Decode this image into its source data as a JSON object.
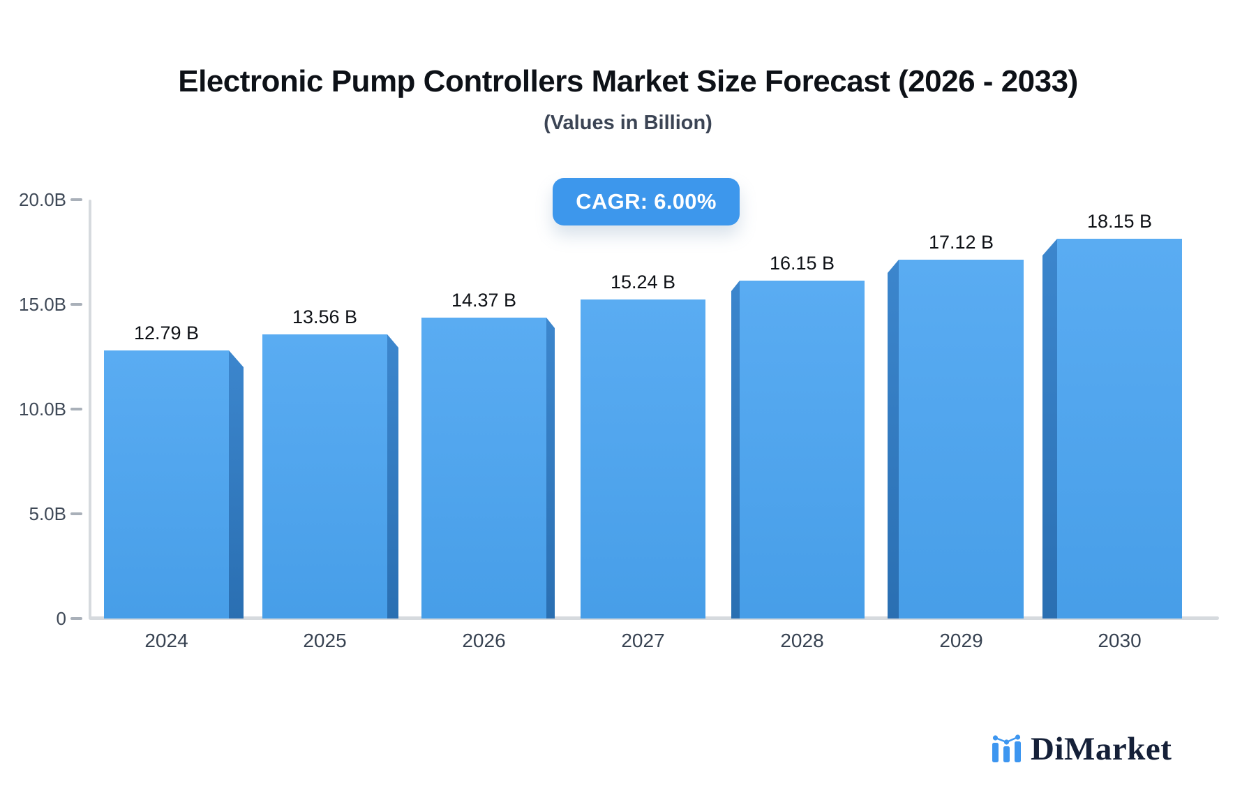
{
  "header": {
    "title": "Electronic Pump Controllers Market Size Forecast (2026 - 2033)",
    "subtitle": "(Values in Billion)"
  },
  "badge": {
    "label": "CAGR: 6.00%",
    "bg_color": "#3d97ec",
    "text_color": "#ffffff"
  },
  "chart_data": {
    "type": "bar",
    "title": "Electronic Pump Controllers Market Size Forecast (2026 - 2033)",
    "subtitle": "(Values in Billion)",
    "categories": [
      "2024",
      "2025",
      "2026",
      "2027",
      "2028",
      "2029",
      "2030"
    ],
    "values": [
      12.79,
      13.56,
      14.37,
      15.24,
      16.15,
      17.12,
      18.15
    ],
    "labels": [
      "12.79 B",
      "13.56 B",
      "14.37 B",
      "15.24 B",
      "16.15 B",
      "17.12 B",
      "18.15 B"
    ],
    "cagr": "6.00%",
    "xlabel": "",
    "ylabel": "",
    "ylim": [
      0,
      20
    ],
    "yticks": [
      {
        "value": 0,
        "label": "0"
      },
      {
        "value": 5,
        "label": "5.0B"
      },
      {
        "value": 10,
        "label": "10.0B"
      },
      {
        "value": 15,
        "label": "15.0B"
      },
      {
        "value": 20,
        "label": "20.0B"
      }
    ],
    "grid": false,
    "legend": false,
    "bar_style": "3d-beveled",
    "colors": {
      "face_top": "#5aacf2",
      "face_bottom": "#479ee8",
      "side_top": "#3c86cd",
      "side_bottom": "#2a6fb2",
      "axis_line": "#d6dade",
      "tick_dash": "#a9b0b9"
    }
  },
  "logo": {
    "name": "DiMarket",
    "icon": "bar-chart-sparkline-icon",
    "text_color": "#152038",
    "accent_color": "#3d96f0"
  }
}
